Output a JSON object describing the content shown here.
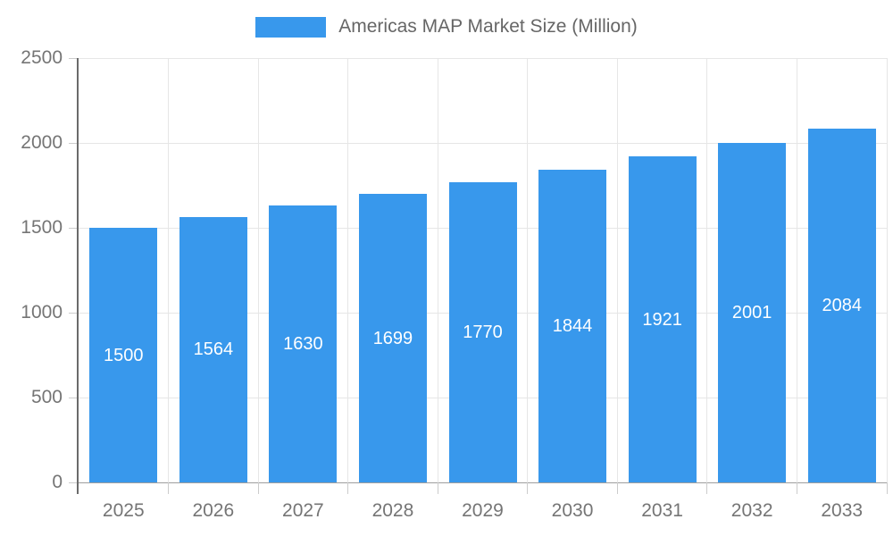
{
  "chart_data": {
    "type": "bar",
    "legend_label": "Americas MAP Market Size (Million)",
    "categories": [
      "2025",
      "2026",
      "2027",
      "2028",
      "2029",
      "2030",
      "2031",
      "2032",
      "2033"
    ],
    "values": [
      1500,
      1564,
      1630,
      1699,
      1770,
      1844,
      1921,
      2001,
      2084
    ],
    "bar_labels": [
      "1500",
      "1564",
      "1630",
      "1699",
      "1770",
      "1844",
      "1921",
      "2001",
      "2084"
    ],
    "ylim": [
      0,
      2500
    ],
    "yticks": [
      0,
      500,
      1000,
      1500,
      2000,
      2500
    ],
    "xlabel": "",
    "ylabel": "",
    "legend_position": "top",
    "grid": true,
    "colors": {
      "bar": "#3898EC",
      "bar_label": "#FFFFFF",
      "axis_text": "#757575",
      "legend_text": "#666666",
      "grid_line": "#E6E6E6",
      "zero_line": "#9E9E9E",
      "axis_line": "#6B6B6B",
      "tick": "#CCCCCC",
      "background": "#FFFFFF"
    }
  }
}
